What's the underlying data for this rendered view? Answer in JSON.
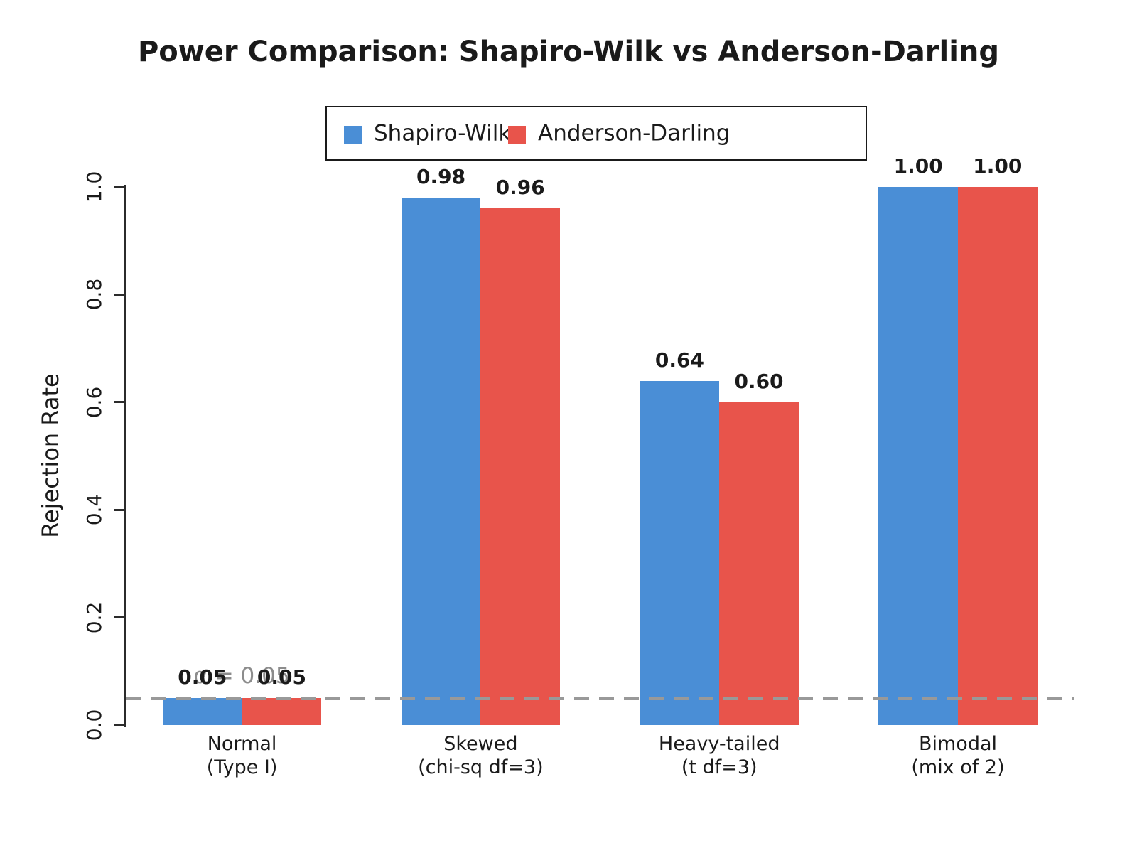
{
  "chart_data": {
    "type": "bar",
    "title": "Power Comparison: Shapiro-Wilk vs Anderson-Darling",
    "categories": [
      "Normal\n(Type I)",
      "Skewed\n(chi-sq df=3)",
      "Heavy-tailed\n(t df=3)",
      "Bimodal\n(mix of 2)"
    ],
    "series": [
      {
        "name": "Shapiro-Wilk",
        "color": "#4A8ED6",
        "values": [
          0.05,
          0.98,
          0.64,
          1.0
        ]
      },
      {
        "name": "Anderson-Darling",
        "color": "#E8544B",
        "values": [
          0.05,
          0.96,
          0.6,
          1.0
        ]
      }
    ],
    "value_labels": [
      [
        "0.05",
        "0.98",
        "0.64",
        "1.00"
      ],
      [
        "0.05",
        "0.96",
        "0.60",
        "1.00"
      ]
    ],
    "ylabel": "Rejection Rate",
    "ylim": [
      0,
      1
    ],
    "yticks": [
      0.0,
      0.2,
      0.4,
      0.6,
      0.8,
      1.0
    ],
    "ytick_labels": [
      "0.0",
      "0.2",
      "0.4",
      "0.6",
      "0.8",
      "1.0"
    ],
    "grid": false,
    "legend_position": "top-center",
    "reference_line": {
      "value": 0.05,
      "label": "α = 0.05",
      "color": "#999999",
      "label_color": "#8C8C8C",
      "style": "dashed"
    },
    "axis_color": "#2b2b2b"
  }
}
